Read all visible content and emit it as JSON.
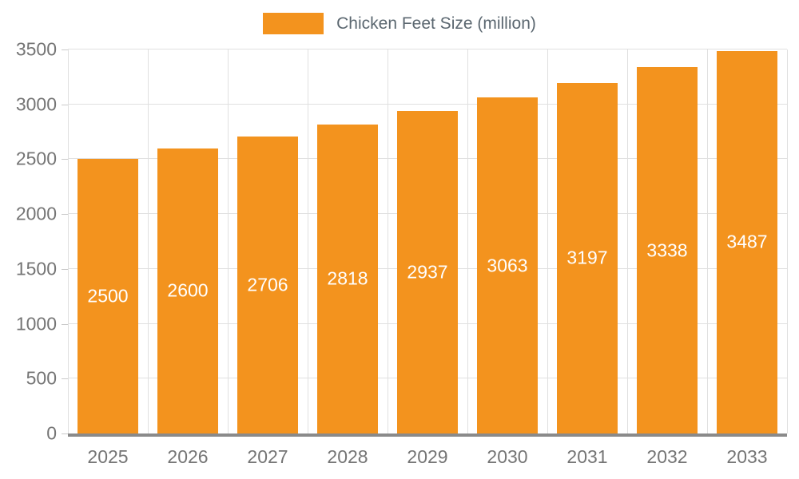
{
  "colors": {
    "bar": "#F3931E",
    "grid": "#E0E0E0",
    "axis": "#8A8A8A",
    "tick_text": "#757575",
    "legend_text": "#5B6770",
    "value_text": "#FFFFFF"
  },
  "chart_data": {
    "type": "bar",
    "title": "Chicken Feet Size (million)",
    "series_name": "Chicken Feet Size (million)",
    "categories": [
      "2025",
      "2026",
      "2027",
      "2028",
      "2029",
      "2030",
      "2031",
      "2032",
      "2033"
    ],
    "values": [
      2500,
      2600,
      2706,
      2818,
      2937,
      3063,
      3197,
      3338,
      3487
    ],
    "xlabel": "",
    "ylabel": "",
    "ylim": [
      0,
      3500
    ],
    "yticks": [
      0,
      500,
      1000,
      1500,
      2000,
      2500,
      3000,
      3500
    ],
    "grid": true,
    "legend_position": "top",
    "value_labels": "inside-center"
  }
}
